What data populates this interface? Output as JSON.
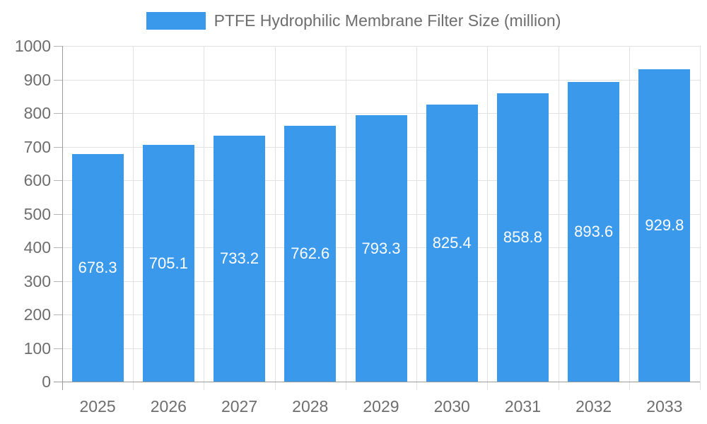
{
  "legend": {
    "label": "PTFE Hydrophilic Membrane Filter Size (million)"
  },
  "chart_data": {
    "type": "bar",
    "title": "",
    "series_name": "PTFE Hydrophilic Membrane Filter Size (million)",
    "categories": [
      "2025",
      "2026",
      "2027",
      "2028",
      "2029",
      "2030",
      "2031",
      "2032",
      "2033"
    ],
    "values": [
      678.3,
      705.1,
      733.2,
      762.6,
      793.3,
      825.4,
      858.8,
      893.6,
      929.8
    ],
    "bar_labels": [
      "678.3",
      "705.1",
      "733.2",
      "762.6",
      "793.3",
      "825.4",
      "858.8",
      "893.6",
      "929.8"
    ],
    "xlabel": "",
    "ylabel": "",
    "ylim": [
      0,
      1000
    ],
    "y_tick_step": 100,
    "y_tick_labels": [
      "0",
      "100",
      "200",
      "300",
      "400",
      "500",
      "600",
      "700",
      "800",
      "900",
      "1000"
    ],
    "grid": true,
    "legend_position": "top",
    "colors": {
      "bar": "#3b99ec",
      "bar_label": "#ffffff",
      "axis_text": "#6e6e6e",
      "grid_line": "#e2e2e2",
      "axis_line": "#9a9a9a",
      "tick_line": "#b5b5b5",
      "background": "#ffffff"
    }
  }
}
